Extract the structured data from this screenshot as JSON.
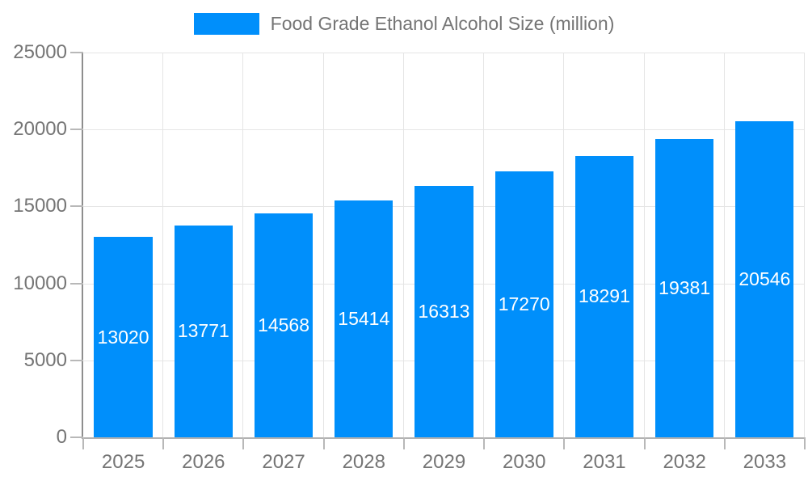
{
  "chart_data": {
    "type": "bar",
    "title": "Food Grade Ethanol Alcohol Size (million)",
    "categories": [
      "2025",
      "2026",
      "2027",
      "2028",
      "2029",
      "2030",
      "2031",
      "2032",
      "2033"
    ],
    "values": [
      13020,
      13771,
      14568,
      15414,
      16313,
      17270,
      18291,
      19381,
      20546
    ],
    "xlabel": "",
    "ylabel": "",
    "ylim": [
      0,
      25000
    ],
    "yticks": [
      0,
      5000,
      10000,
      15000,
      20000,
      25000
    ],
    "grid": true,
    "legend_position": "top",
    "colors": {
      "bar": "#008FFB",
      "bar_label": "#FFFFFF",
      "axis_text": "#757575",
      "legend_text": "#757575",
      "gridline": "#E5E5E5",
      "y_axis_line": "#8E8E8E",
      "x_axis_line": "#B2B2B2",
      "tick": "#B8B8B8",
      "background": "#FFFFFF"
    }
  }
}
